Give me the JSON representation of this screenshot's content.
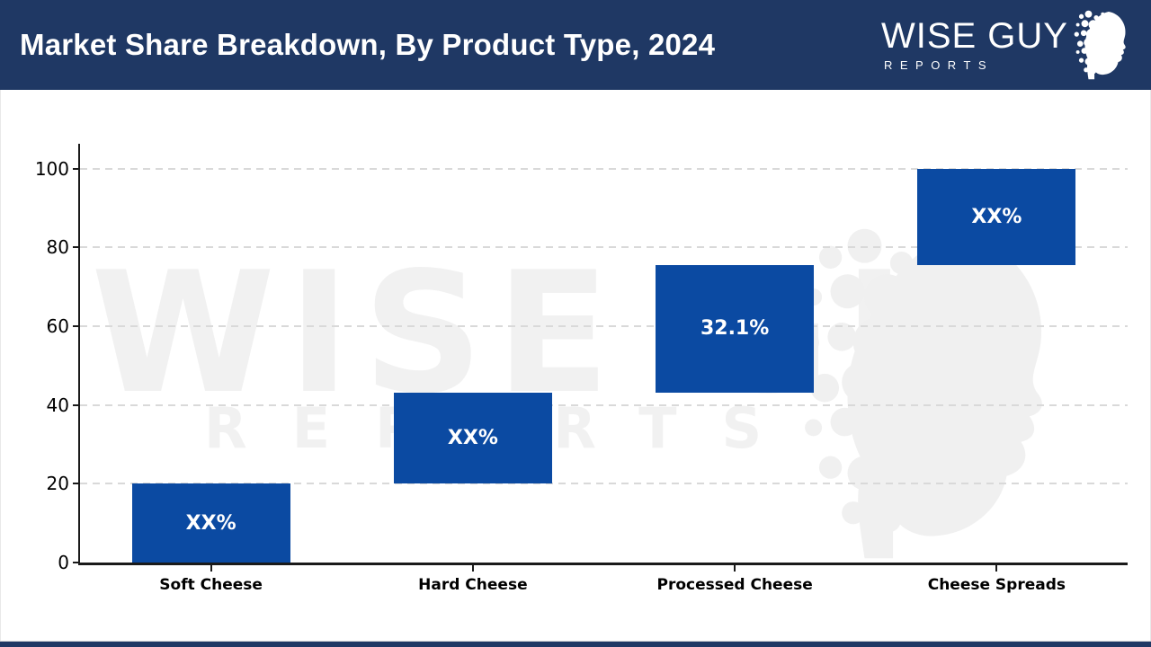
{
  "header": {
    "title": "Market Share Breakdown, By Product Type, 2024",
    "logo": {
      "wordmark": "WISE GUY",
      "subtext": "REPORTS"
    }
  },
  "watermark": {
    "wordmark": "WISE GU",
    "subtext": "REPORTS"
  },
  "chart_data": {
    "type": "bar",
    "variant": "waterfall",
    "title": "Market Share Breakdown, By Product Type, 2024",
    "categories": [
      "Soft Cheese",
      "Hard Cheese",
      "Processed Cheese",
      "Cheese Spreads"
    ],
    "bars": [
      {
        "category": "Soft Cheese",
        "start": 0,
        "end": 20,
        "label": "XX%"
      },
      {
        "category": "Hard Cheese",
        "start": 20,
        "end": 43.2,
        "label": "XX%"
      },
      {
        "category": "Processed Cheese",
        "start": 43.2,
        "end": 75.4,
        "label": "32.1%"
      },
      {
        "category": "Cheese Spreads",
        "start": 75.4,
        "end": 100,
        "label": "XX%"
      }
    ],
    "xlabel": "",
    "ylabel": "",
    "ylim": [
      0,
      106
    ],
    "yticks": [
      0,
      20,
      40,
      60,
      80,
      100
    ],
    "grid": "horizontal-dashed",
    "legend": "none",
    "bar_color": "#0b4aa2",
    "value_label_color": "#ffffff"
  },
  "colors": {
    "header_bg": "#1f3864",
    "footer_bg": "#1f3864",
    "bar": "#0b4aa2",
    "grid": "#d9d9d9",
    "axis": "#1a1a1a",
    "watermark": "#f1f1f1",
    "title_text": "#ffffff"
  }
}
